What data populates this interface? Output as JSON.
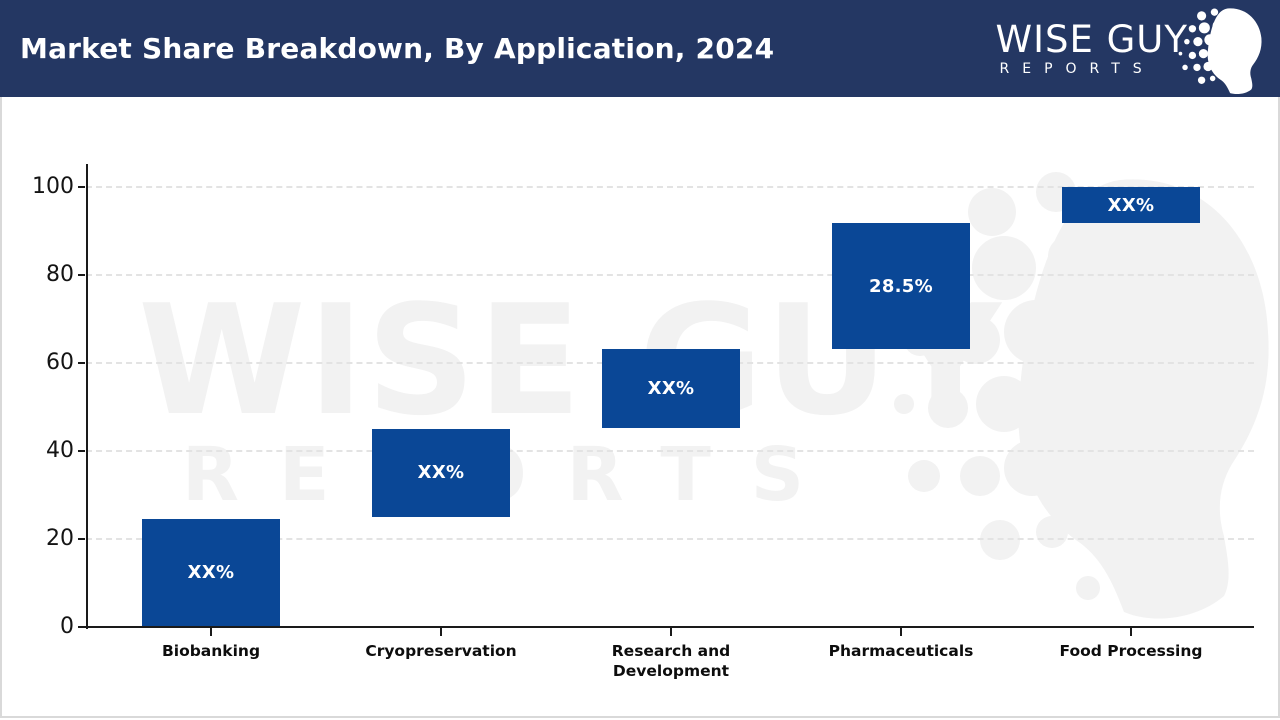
{
  "header": {
    "title": "Market Share Breakdown, By Application, 2024",
    "bg_color": "#243763",
    "logo": {
      "line1": "WISE GUY",
      "line2": "REPORTS"
    }
  },
  "watermark": {
    "line1": "WISE GUY",
    "line2": "REPORTS"
  },
  "chart_data": {
    "type": "bar",
    "subtype": "waterfall",
    "title": "Market Share Breakdown, By Application, 2024",
    "xlabel": "",
    "ylabel": "",
    "ylim": [
      0,
      105
    ],
    "yticks": [
      0,
      20,
      40,
      60,
      80,
      100
    ],
    "grid": "dashed-horizontal",
    "bar_color": "#0a4796",
    "categories": [
      "Biobanking",
      "Cryopreservation",
      "Research and Development",
      "Pharmaceuticals",
      "Food Processing"
    ],
    "segments": [
      {
        "category": "Biobanking",
        "start": 0,
        "end": 24.5,
        "label": "XX%"
      },
      {
        "category": "Cryopreservation",
        "start": 24.9,
        "end": 44.9,
        "label": "XX%"
      },
      {
        "category": "Research and Development",
        "start": 45.1,
        "end": 63.1,
        "label": "XX%"
      },
      {
        "category": "Pharmaceuticals",
        "start": 63.1,
        "end": 91.6,
        "label": "28.5%"
      },
      {
        "category": "Food Processing",
        "start": 91.7,
        "end": 99.8,
        "label": "XX%"
      }
    ]
  }
}
